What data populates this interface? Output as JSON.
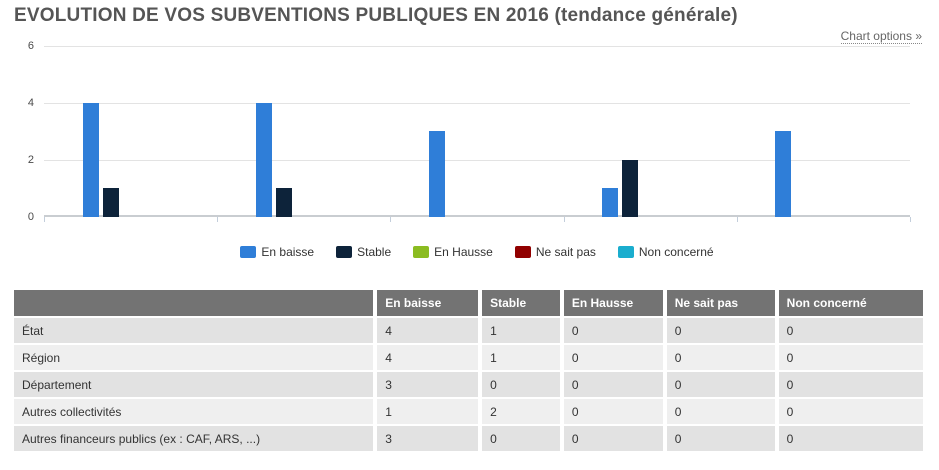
{
  "title": "EVOLUTION DE VOS SUBVENTIONS PUBLIQUES EN 2016 (tendance générale)",
  "chart_options_label": "Chart options »",
  "chart_data": {
    "type": "bar",
    "title": "EVOLUTION DE VOS SUBVENTIONS PUBLIQUES EN 2016 (tendance générale)",
    "categories": [
      "État",
      "Région",
      "Département",
      "Autres collectivités",
      "Autres financeurs publics (ex : CAF, ARS, ...)"
    ],
    "series": [
      {
        "name": "En baisse",
        "color": "#2f7ed8",
        "values": [
          4,
          4,
          3,
          1,
          3
        ]
      },
      {
        "name": "Stable",
        "color": "#0d233a",
        "values": [
          1,
          1,
          0,
          2,
          0
        ]
      },
      {
        "name": "En Hausse",
        "color": "#8bbc21",
        "values": [
          0,
          0,
          0,
          0,
          0
        ]
      },
      {
        "name": "Ne sait pas",
        "color": "#910000",
        "values": [
          0,
          0,
          0,
          0,
          0
        ]
      },
      {
        "name": "Non concerné",
        "color": "#1aadce",
        "values": [
          0,
          0,
          0,
          0,
          0
        ]
      }
    ],
    "xlabel": "",
    "ylabel": "",
    "ylim": [
      0,
      6
    ],
    "yticks": [
      0,
      2,
      4,
      6
    ],
    "grid": true,
    "legend_position": "bottom"
  },
  "table": {
    "columns": [
      "",
      "En baisse",
      "Stable",
      "En Hausse",
      "Ne sait pas",
      "Non concerné"
    ],
    "rows": [
      {
        "label": "État",
        "values": [
          "4",
          "1",
          "0",
          "0",
          "0"
        ]
      },
      {
        "label": "Région",
        "values": [
          "4",
          "1",
          "0",
          "0",
          "0"
        ]
      },
      {
        "label": "Département",
        "values": [
          "3",
          "0",
          "0",
          "0",
          "0"
        ]
      },
      {
        "label": "Autres collectivités",
        "values": [
          "1",
          "2",
          "0",
          "0",
          "0"
        ]
      },
      {
        "label": "Autres financeurs publics (ex : CAF, ARS, ...)",
        "values": [
          "3",
          "0",
          "0",
          "0",
          "0"
        ]
      }
    ]
  }
}
